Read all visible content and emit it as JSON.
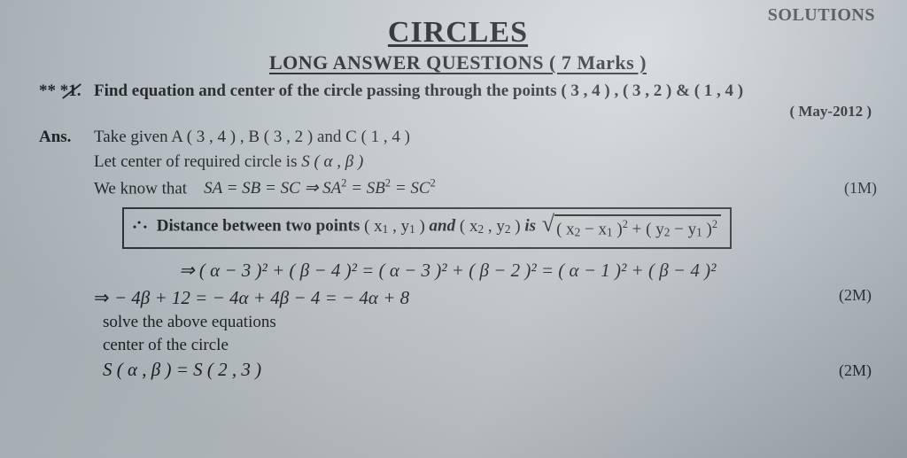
{
  "header": {
    "corner": "SOLUTIONS",
    "title": "CIRCLES",
    "subtitle": "LONG  ANSWER  QUESTIONS  ( 7  Marks )"
  },
  "question": {
    "label": "** *1.",
    "text": "Find equation and center of the circle passing through the points ",
    "points": "( 3 , 4 ) , ( 3 , 2 )  &  ( 1 , 4 )",
    "date": "( May-2012 )"
  },
  "answer": {
    "label": "Ans.",
    "take_given": "Take given A ( 3 , 4 ) ,  B ( 3 , 2 )  and  C ( 1 , 4 )",
    "let_center": "Let center of required circle is  ",
    "s_alpha_beta": "S ( α , β )",
    "we_know": "We know that",
    "sa_chain": "SA = SB = SC ⇒ SA",
    "sq": "2",
    "eq1_mid1": " = SB",
    "eq1_mid2": " = SC",
    "mark1": "(1M)",
    "box_lead": "Distance between two points ",
    "box_pt1_a": "( x",
    "box_pt1_b": " , y",
    "box_pt1_c": " )",
    "box_and": " and ",
    "box_pt2_a": "( x",
    "box_pt2_b": " , y",
    "box_pt2_c": " )",
    "box_is": " is ",
    "rad_a1": "( x",
    "rad_a2": " − x",
    "rad_a3": " )",
    "rad_plus": " + ",
    "rad_b1": "( y",
    "rad_b2": " − y",
    "rad_b3": " )",
    "eq_expand": "⇒ ( α − 3 )² + ( β − 4 )² = ( α − 3 )² + ( β − 2 )² = ( α − 1 )² + ( β − 4 )²",
    "eq_simpl_lead": "⇒ ",
    "eq_simpl": "− 4β + 12  =  − 4α + 4β − 4  =  − 4α + 8",
    "mark2": "(2M)",
    "solve": "solve the above equations",
    "center_line": "center of the circle",
    "final": "S ( α , β ) = S ( 2 , 3 )",
    "mark3": "(2M)"
  }
}
